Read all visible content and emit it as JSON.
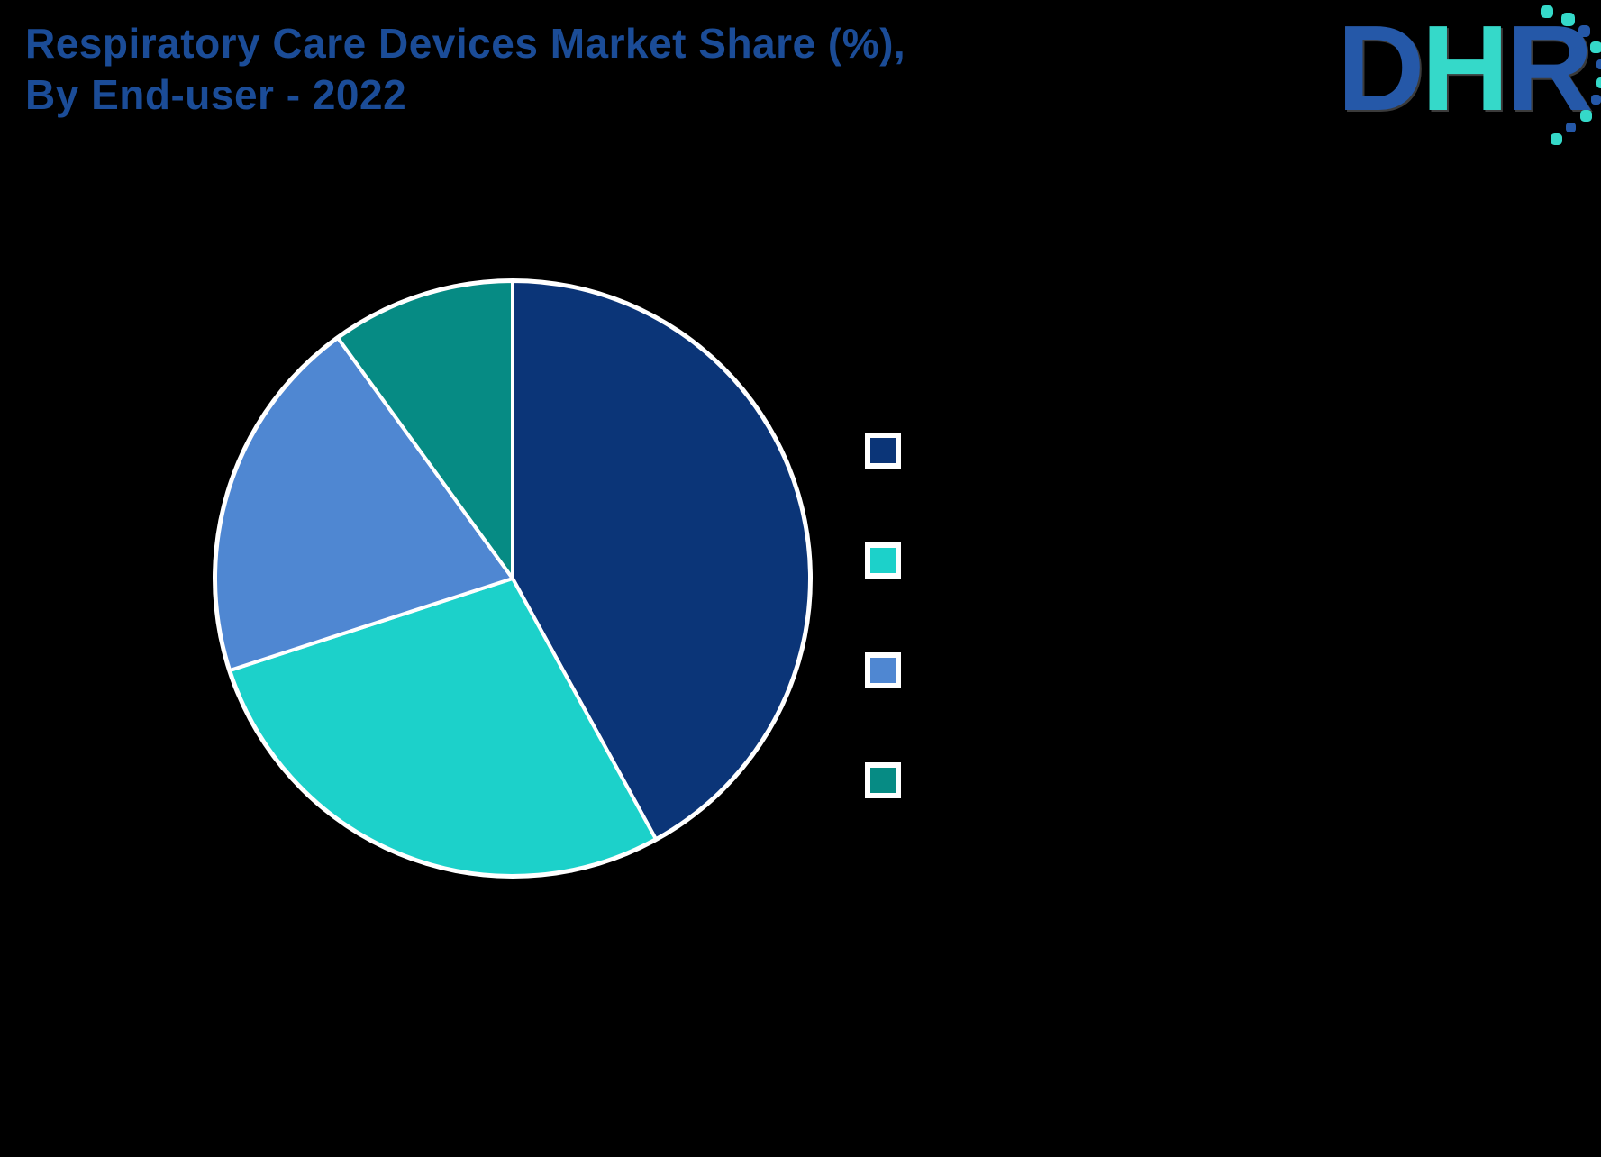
{
  "page": {
    "background": "#000000"
  },
  "header": {
    "title_line1": "Respiratory Care Devices Market Share (%),",
    "title_line2": "By End-user - 2022",
    "title_color": "#1B4C97"
  },
  "logo": {
    "letters": [
      {
        "char": "D",
        "color": "#2558A8"
      },
      {
        "char": "H",
        "color": "#35D9C9"
      },
      {
        "char": "R",
        "color": "#2558A8"
      }
    ],
    "dot_colors": {
      "teal": "#35D9C9",
      "blue": "#2558A8"
    }
  },
  "chart_data": {
    "type": "pie",
    "title": "Respiratory Care Devices Market Share (%), By End-user - 2022",
    "start_angle_deg": 0,
    "direction": "clockwise",
    "legend_position": "right",
    "slice_border_color": "#FFFFFF",
    "legend_swatch_border_color": "#FFFFFF",
    "segments": [
      {
        "label": "",
        "value_pct": 42,
        "color": "#0B3578"
      },
      {
        "label": "",
        "value_pct": 28,
        "color": "#1CD1CA"
      },
      {
        "label": "",
        "value_pct": 20,
        "color": "#4F87D2"
      },
      {
        "label": "",
        "value_pct": 10,
        "color": "#068B84"
      }
    ]
  }
}
